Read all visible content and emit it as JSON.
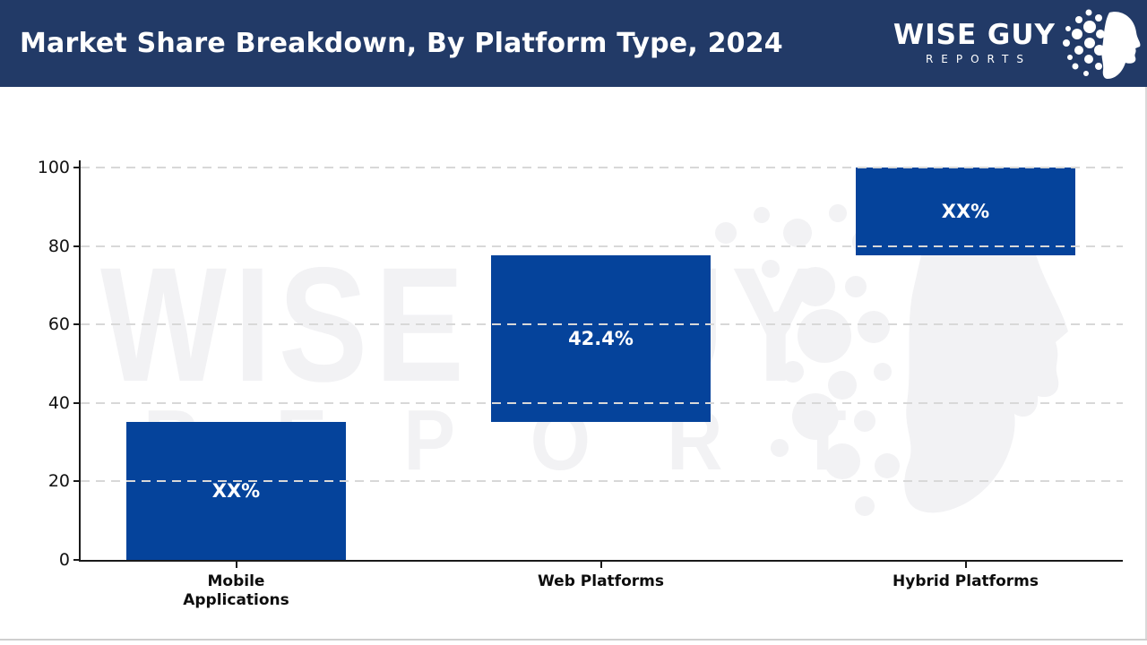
{
  "header": {
    "title": "Market Share Breakdown, By Platform Type, 2024"
  },
  "logo": {
    "line1": "WISE GUY",
    "line2": "REPORTS"
  },
  "watermark": {
    "line1": "WISE GUY",
    "line2": "R E P O R T S"
  },
  "chart_data": {
    "type": "bar",
    "subtype": "floating-segment-breakdown",
    "title": "Market Share Breakdown, By Platform Type, 2024",
    "categories": [
      "Mobile Applications",
      "Web Platforms",
      "Hybrid Platforms"
    ],
    "values": [
      35.2,
      42.4,
      22.4
    ],
    "segment_start": [
      0,
      35.2,
      77.6
    ],
    "bar_labels": [
      "XX%",
      "42.4%",
      "XX%"
    ],
    "xlabel": "",
    "ylabel": "",
    "ylim": [
      0,
      100
    ],
    "yticks": [
      0,
      20,
      40,
      60,
      80,
      100
    ],
    "grid": "horizontal-dashed",
    "legend": "none",
    "colors": {
      "bar": "#05439b",
      "bar_label": "#ffffff",
      "header_bg": "#223a67",
      "gridline": "#d8d8d8",
      "axis": "#1a1a1a",
      "watermark": "#f2f2f4"
    }
  }
}
